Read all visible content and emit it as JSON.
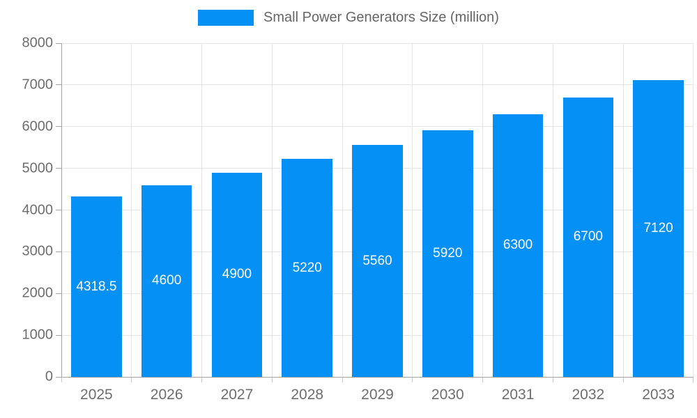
{
  "legend": {
    "swatch_icon": "series-color-swatch"
  },
  "chart_data": {
    "type": "bar",
    "title": "Small Power Generators Size (million)",
    "categories": [
      "2025",
      "2026",
      "2027",
      "2028",
      "2029",
      "2030",
      "2031",
      "2032",
      "2033"
    ],
    "values": [
      4318.5,
      4600,
      4900,
      5220,
      5560,
      5920,
      6300,
      6700,
      7120
    ],
    "value_labels": [
      "4318.5",
      "4600",
      "4900",
      "5220",
      "5560",
      "5920",
      "6300",
      "6700",
      "7120"
    ],
    "series_name": "Small Power Generators Size (million)",
    "xlabel": "",
    "ylabel": "",
    "ylim": [
      0,
      8000
    ],
    "ytick_step": 1000,
    "ytick_labels": [
      "0",
      "1000",
      "2000",
      "3000",
      "4000",
      "5000",
      "6000",
      "7000",
      "8000"
    ],
    "grid": true,
    "legend_position": "top",
    "bar_color": "#0590F5",
    "bar_label_color": "#ffffff",
    "axis_text_color": "#6e6e6e",
    "gridline_color": "#e5e5e5",
    "axis_line_color": "#a3a3a3"
  }
}
